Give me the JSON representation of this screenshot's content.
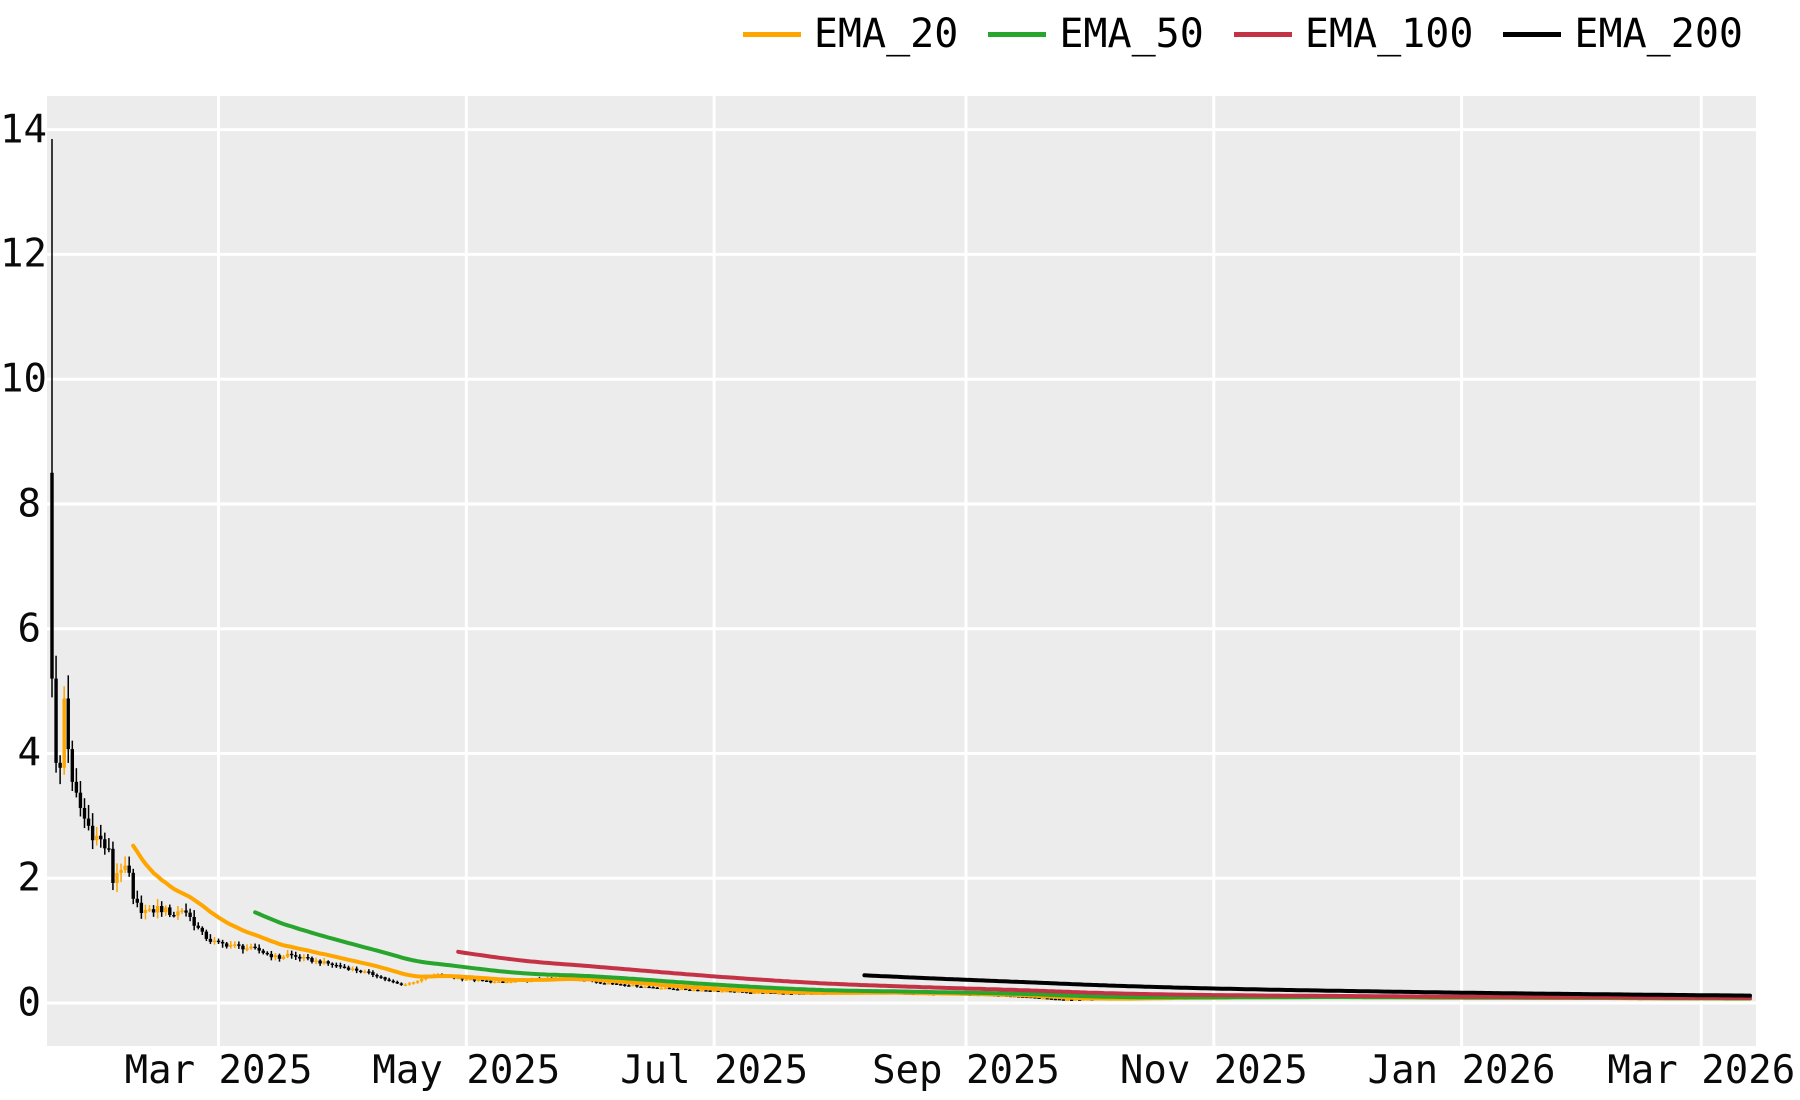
{
  "figure": {
    "background": "#ffffff",
    "plot_bg": "#ececec",
    "grid_color": "#ffffff",
    "tick_color": "#0a0a0a"
  },
  "legend": {
    "items": [
      {
        "label": "EMA_20",
        "color": "#FFA500"
      },
      {
        "label": "EMA_50",
        "color": "#28A52D"
      },
      {
        "label": "EMA_100",
        "color": "#C43246"
      },
      {
        "label": "EMA_200",
        "color": "#000000"
      }
    ]
  },
  "chart_data": {
    "type": "candlestick",
    "title": "",
    "xlabel": "",
    "ylabel": "",
    "grid": true,
    "legend_position": "top-right",
    "n_days": 419,
    "ylim": [
      -0.69,
      14.54
    ],
    "y_ticks": [
      0,
      2,
      4,
      6,
      8,
      10,
      12,
      14
    ],
    "x_ticks": [
      {
        "label": "Mar 2025",
        "day": 41
      },
      {
        "label": "May 2025",
        "day": 102
      },
      {
        "label": "Jul 2025",
        "day": 163
      },
      {
        "label": "Sep 2025",
        "day": 225
      },
      {
        "label": "Nov 2025",
        "day": 286
      },
      {
        "label": "Jan 2026",
        "day": 347
      },
      {
        "label": "Mar 2026",
        "day": 406
      }
    ],
    "candles": {
      "up_color": "#FFA500",
      "down_color": "#000000",
      "first_open": 8.5,
      "first_high": 13.85,
      "first_low": 4.9,
      "close_keypoints": [
        [
          0,
          5.2
        ],
        [
          1,
          3.85
        ],
        [
          2,
          3.75
        ],
        [
          3,
          4.9
        ],
        [
          4,
          4.15
        ],
        [
          5,
          3.45
        ],
        [
          6,
          3.3
        ],
        [
          8,
          2.95
        ],
        [
          10,
          2.72
        ],
        [
          12,
          2.6
        ],
        [
          14,
          2.4
        ],
        [
          15,
          1.95
        ],
        [
          16,
          2.1
        ],
        [
          17,
          2.18
        ],
        [
          19,
          2.05
        ],
        [
          20,
          1.62
        ],
        [
          22,
          1.5
        ],
        [
          24,
          1.45
        ],
        [
          26,
          1.52
        ],
        [
          28,
          1.48
        ],
        [
          30,
          1.42
        ],
        [
          32,
          1.5
        ],
        [
          33,
          1.46
        ],
        [
          35,
          1.28
        ],
        [
          37,
          1.1
        ],
        [
          39,
          1.0
        ],
        [
          41,
          0.95
        ],
        [
          44,
          0.93
        ],
        [
          46,
          0.9
        ],
        [
          48,
          0.88
        ],
        [
          51,
          0.84
        ],
        [
          54,
          0.76
        ],
        [
          56,
          0.72
        ],
        [
          58,
          0.78
        ],
        [
          60,
          0.74
        ],
        [
          64,
          0.68
        ],
        [
          68,
          0.63
        ],
        [
          72,
          0.57
        ],
        [
          76,
          0.51
        ],
        [
          80,
          0.44
        ],
        [
          83,
          0.35
        ],
        [
          86,
          0.29
        ],
        [
          89,
          0.33
        ],
        [
          92,
          0.42
        ],
        [
          95,
          0.45
        ],
        [
          100,
          0.4
        ],
        [
          105,
          0.36
        ],
        [
          110,
          0.33
        ],
        [
          115,
          0.35
        ],
        [
          120,
          0.38
        ],
        [
          126,
          0.4
        ],
        [
          130,
          0.38
        ],
        [
          135,
          0.33
        ],
        [
          140,
          0.3
        ],
        [
          146,
          0.26
        ],
        [
          152,
          0.23
        ],
        [
          158,
          0.21
        ],
        [
          165,
          0.19
        ],
        [
          172,
          0.17
        ],
        [
          180,
          0.155
        ],
        [
          188,
          0.15
        ],
        [
          196,
          0.16
        ],
        [
          205,
          0.17
        ],
        [
          213,
          0.15
        ],
        [
          221,
          0.14
        ],
        [
          229,
          0.13
        ],
        [
          237,
          0.11
        ],
        [
          243,
          0.08
        ],
        [
          249,
          0.055
        ],
        [
          255,
          0.06
        ],
        [
          261,
          0.065
        ],
        [
          268,
          0.08
        ],
        [
          275,
          0.09
        ],
        [
          283,
          0.085
        ],
        [
          290,
          0.095
        ],
        [
          298,
          0.09
        ],
        [
          306,
          0.1
        ],
        [
          314,
          0.095
        ],
        [
          322,
          0.09
        ],
        [
          330,
          0.085
        ],
        [
          340,
          0.08
        ],
        [
          350,
          0.085
        ],
        [
          360,
          0.08
        ],
        [
          370,
          0.075
        ],
        [
          380,
          0.08
        ],
        [
          390,
          0.07
        ],
        [
          400,
          0.072
        ],
        [
          410,
          0.068
        ],
        [
          418,
          0.07
        ]
      ]
    },
    "overlays": [
      {
        "label": "EMA_20",
        "period": 20,
        "color": "#FFA500",
        "start_value": 2.2
      },
      {
        "label": "EMA_50",
        "period": 50,
        "color": "#28A52D",
        "start_value": 1.5
      },
      {
        "label": "EMA_100",
        "period": 100,
        "color": "#C43246",
        "start_value": 1.0
      },
      {
        "label": "EMA_200",
        "period": 200,
        "color": "#000000",
        "start_value": 0.62
      }
    ]
  }
}
